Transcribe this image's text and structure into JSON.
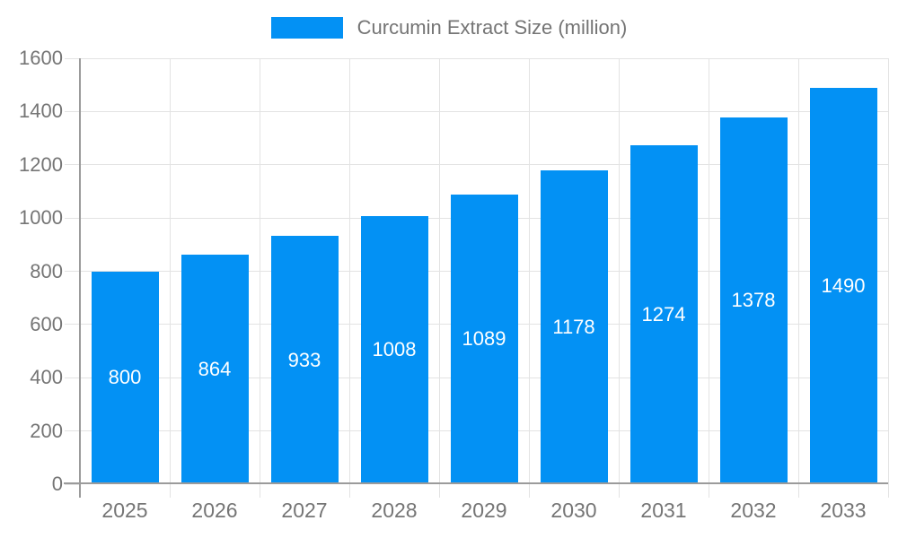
{
  "chart_data": {
    "type": "bar",
    "title": "Curcumin Extract Size (million)",
    "categories": [
      "2025",
      "2026",
      "2027",
      "2028",
      "2029",
      "2030",
      "2031",
      "2032",
      "2033"
    ],
    "values": [
      800,
      864,
      933,
      1008,
      1089,
      1178,
      1274,
      1378,
      1490
    ],
    "xlabel": "",
    "ylabel": "",
    "ylim": [
      0,
      1600
    ],
    "yticks": [
      0,
      200,
      400,
      600,
      800,
      1000,
      1200,
      1400,
      1600
    ],
    "grid": true,
    "legend_position": "top",
    "bar_color": "#0391f4",
    "value_label_color": "#ffffff",
    "axis_text_color": "#757575",
    "gridline_color": "#e3e3e3",
    "axis_line_color": "#9b9b9b"
  }
}
